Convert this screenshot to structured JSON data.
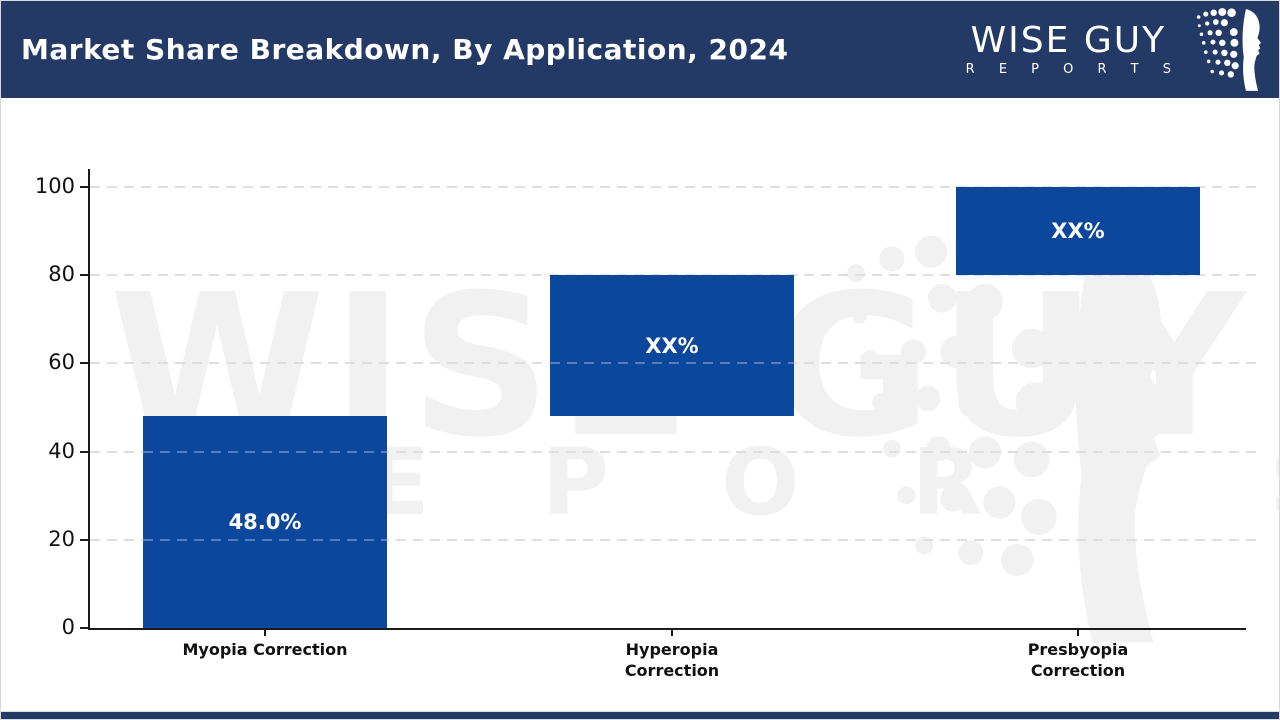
{
  "header": {
    "title": "Market Share Breakdown, By Application, 2024",
    "logo": {
      "line1": "WISE GUY",
      "line2": "R E P O R T S"
    }
  },
  "watermark": {
    "line1": "WISE GUY",
    "line2": "R E P O R T S"
  },
  "colors": {
    "header_bg": "#233A66",
    "bar_blue": "#0C479E",
    "grid_gray": "#DEDEDE",
    "watermark_gray": "#F1F1F1",
    "footer_bg": "#233A66",
    "text_black": "#111111",
    "text_white": "#FFFFFF"
  },
  "chart_data": {
    "type": "bar",
    "subtype": "waterfall",
    "title": "Market Share Breakdown, By Application, 2024",
    "xlabel": "",
    "ylabel": "",
    "ylim": [
      0,
      100
    ],
    "y_ticks": [
      0,
      20,
      40,
      60,
      80,
      100
    ],
    "grid": "horizontal-dashed",
    "legend": "none",
    "categories": [
      "Myopia Correction",
      "Hyperopia Correction",
      "Presbyopia Correction"
    ],
    "category_labels": [
      "Myopia Correction",
      "Hyperopia\nCorrection",
      "Presbyopia\nCorrection"
    ],
    "segments": [
      {
        "category": "Myopia Correction",
        "start": 0,
        "end": 48,
        "value": 48,
        "label": "48.0%"
      },
      {
        "category": "Hyperopia Correction",
        "start": 48,
        "end": 80,
        "value": 32,
        "label": "XX%"
      },
      {
        "category": "Presbyopia Correction",
        "start": 80,
        "end": 100,
        "value": 20,
        "label": "XX%"
      }
    ]
  }
}
